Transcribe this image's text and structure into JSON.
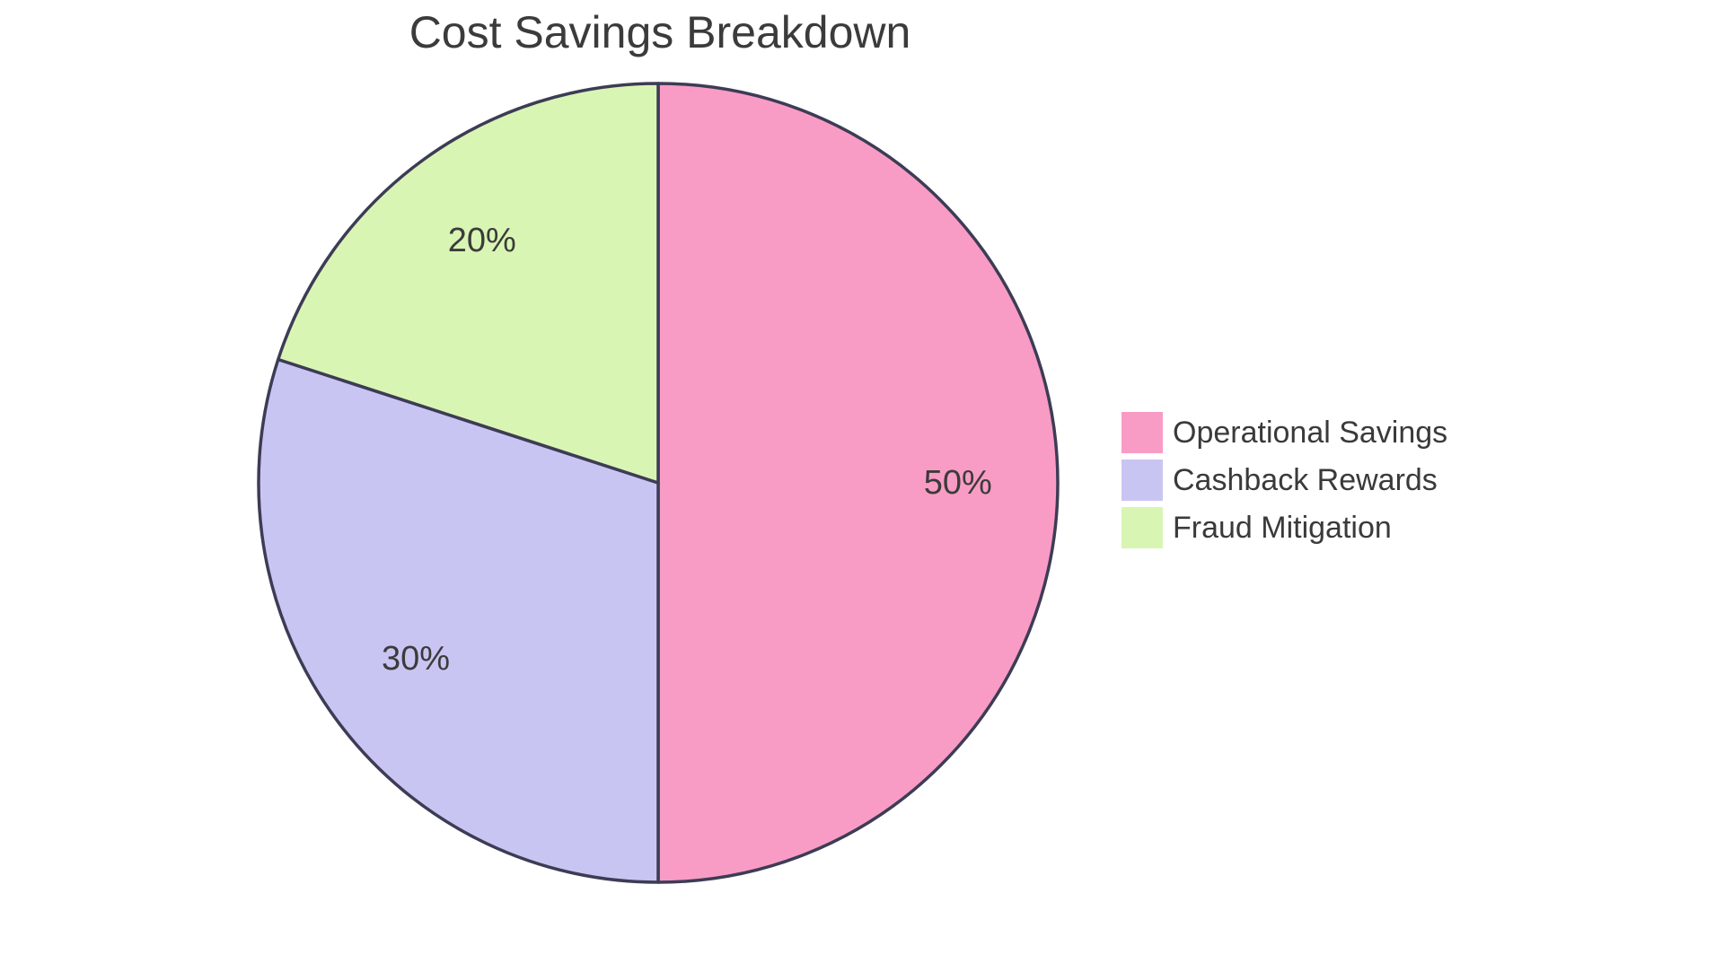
{
  "page": {
    "background": "#FFFFFF"
  },
  "chart_data": {
    "type": "pie",
    "title": "Cost Savings Breakdown",
    "segments": [
      {
        "label": "Operational Savings",
        "value": 50,
        "display": "50%",
        "color": "#F99CC5"
      },
      {
        "label": "Cashback Rewards",
        "value": 30,
        "display": "30%",
        "color": "#C9C5F3"
      },
      {
        "label": "Fraud Mitigation",
        "value": 20,
        "display": "20%",
        "color": "#D9F5B4"
      }
    ],
    "start_angle": "top",
    "direction": "clockwise",
    "legend_position": "right",
    "slice_border_color": "#3D3C55",
    "label_text_color": "#3B3B3B",
    "title_text_color": "#3B3B3B"
  }
}
